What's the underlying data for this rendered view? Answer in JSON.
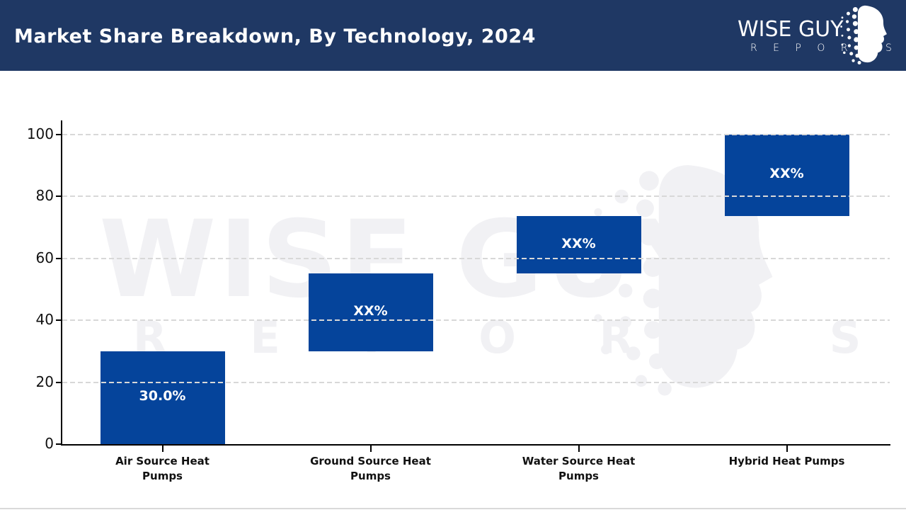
{
  "header": {
    "title": "Market Share Breakdown, By Technology, 2024",
    "logo": {
      "wordmark": "WISE GUY",
      "reports": "REPORTS"
    },
    "bg_color": "#1f3864"
  },
  "watermark": {
    "wordmark": "WISE GUY",
    "reports": "R E P O R T S"
  },
  "chart_data": {
    "type": "bar",
    "subtype": "waterfall",
    "title": "Market Share Breakdown, By Technology, 2024",
    "categories": [
      "Air Source Heat Pumps",
      "Ground Source Heat Pumps",
      "Water Source Heat Pumps",
      "Hybrid Heat Pumps"
    ],
    "bars": [
      {
        "base": 0,
        "top": 30,
        "value": 30.0,
        "label": "30.0%"
      },
      {
        "base": 30,
        "top": 55,
        "value": 25.0,
        "label": "XX%"
      },
      {
        "base": 55,
        "top": 73.5,
        "value": 18.5,
        "label": "XX%"
      },
      {
        "base": 73.5,
        "top": 100,
        "value": 26.5,
        "label": "XX%"
      }
    ],
    "yticks": [
      0,
      20,
      40,
      60,
      80,
      100
    ],
    "ylim": [
      0,
      104.5
    ],
    "xlabel": "",
    "ylabel": "",
    "legend": "none",
    "grid": "dashed horizontal, drawn above bars",
    "bar_color": "#05449b",
    "bar_label_color": "#ffffff",
    "grid_color": "#d8d8d8",
    "axis_color": "#000000"
  }
}
